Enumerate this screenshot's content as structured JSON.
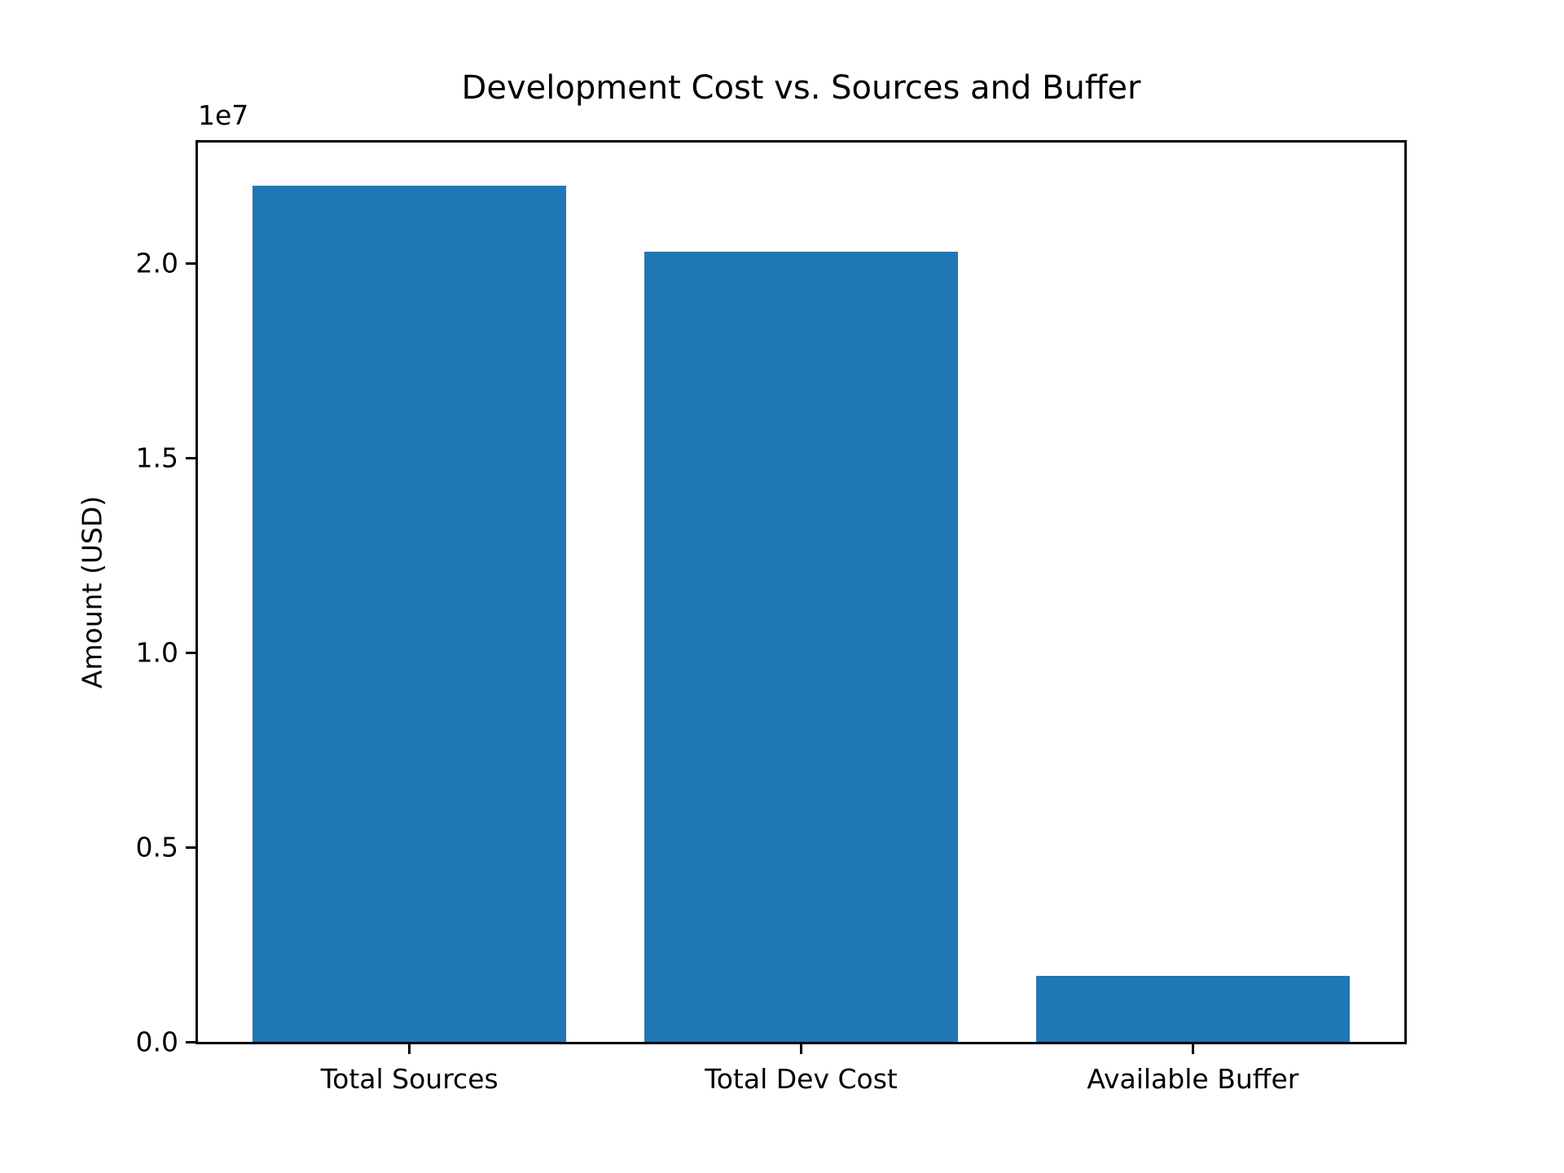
{
  "figure": {
    "background": "#ffffff",
    "text_color": "#000000"
  },
  "chart_data": {
    "type": "bar",
    "title": "Development Cost vs. Sources and Buffer",
    "xlabel": "",
    "ylabel": "Amount (USD)",
    "offset_text": "1e7",
    "categories": [
      "Total Sources",
      "Total Dev Cost",
      "Available Buffer"
    ],
    "values": [
      22000000,
      20300000,
      1700000
    ],
    "bar_color": "#1f77b4",
    "bar_width": 0.8,
    "xlim": [
      -0.54,
      2.54
    ],
    "ylim": [
      0,
      23100000
    ],
    "yticks": [
      0,
      5000000,
      10000000,
      15000000,
      20000000
    ],
    "ytick_labels": [
      "0.0",
      "0.5",
      "1.0",
      "1.5",
      "2.0"
    ],
    "grid": false,
    "legend_position": "none"
  }
}
